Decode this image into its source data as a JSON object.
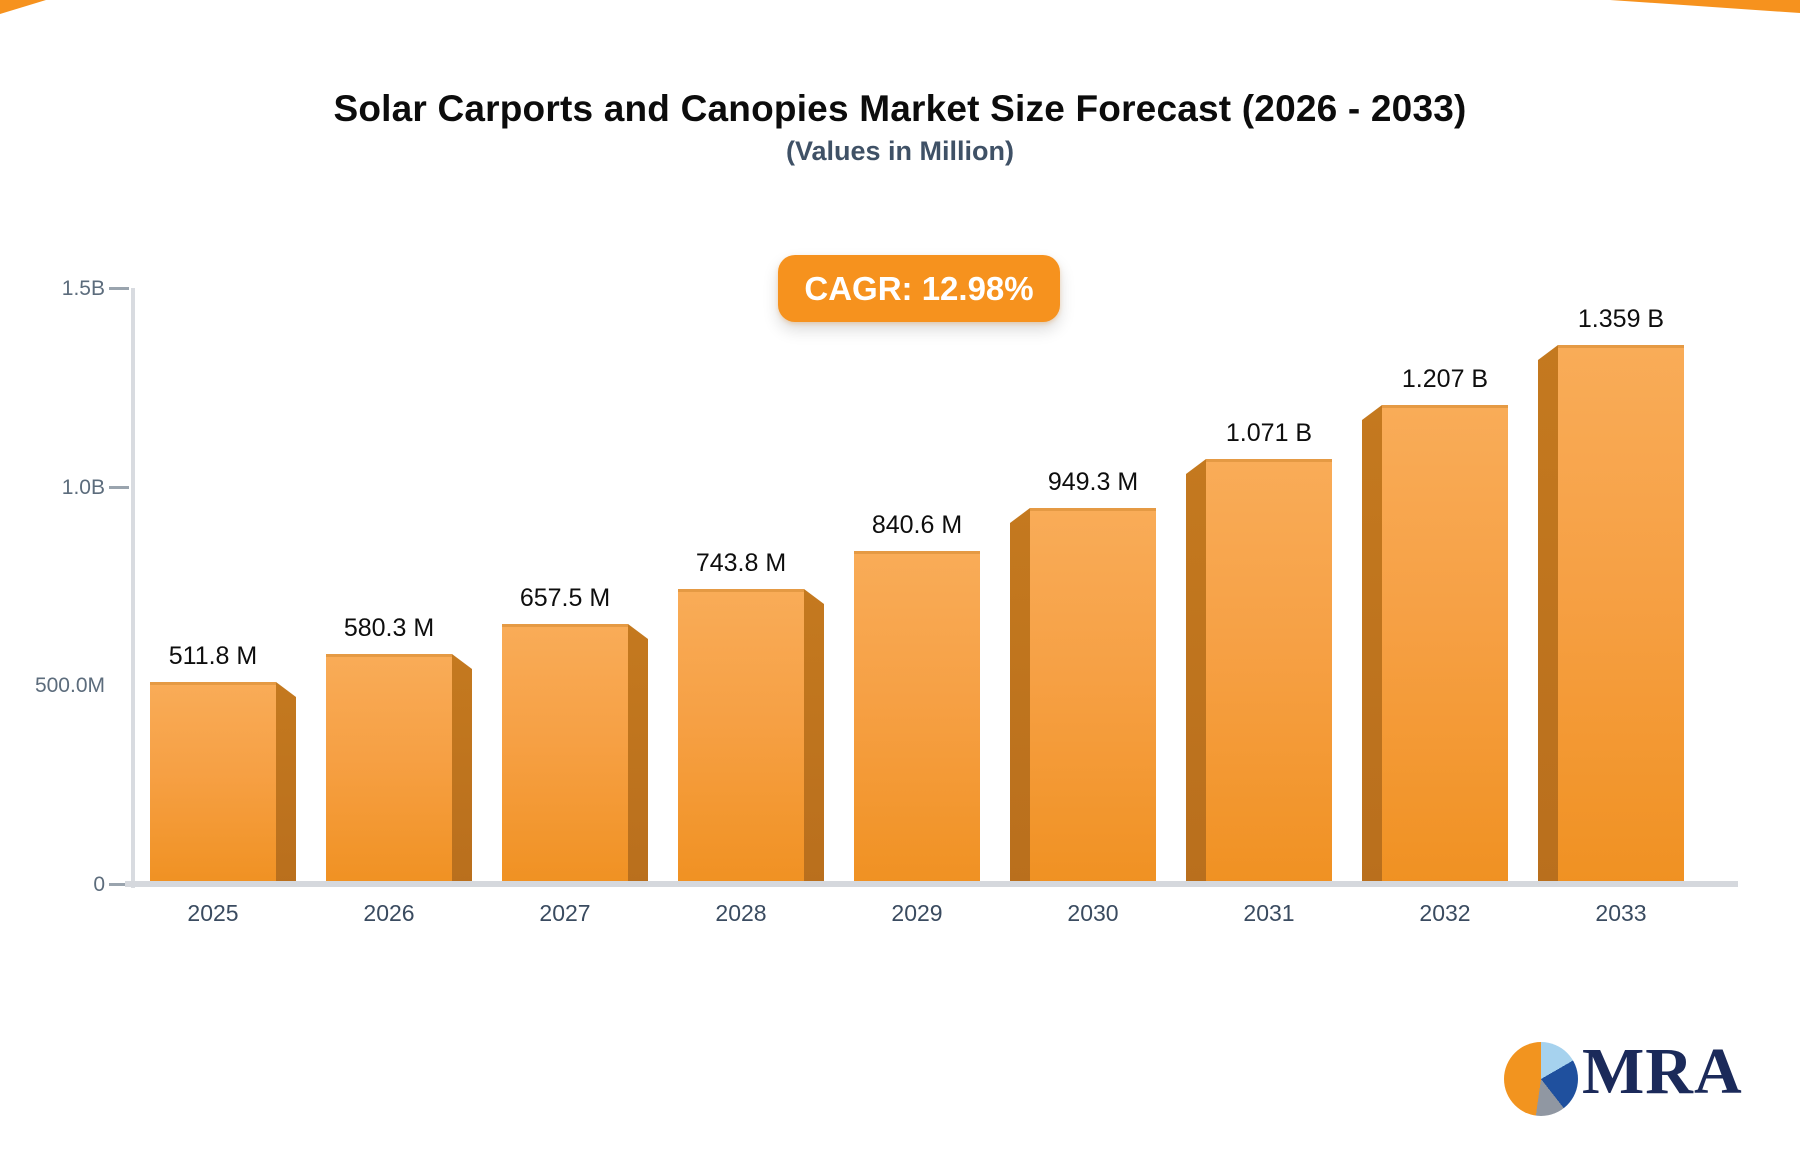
{
  "header": {
    "title": "Solar Carports and Canopies Market Size Forecast (2026 - 2033)",
    "subtitle": "(Values in Million)",
    "cagr_badge": "CAGR: 12.98%"
  },
  "chart_data": {
    "type": "bar",
    "title": "Solar Carports and Canopies Market Size Forecast (2026 - 2033)",
    "subtitle": "(Values in Million)",
    "cagr_percent": 12.98,
    "categories": [
      "2025",
      "2026",
      "2027",
      "2028",
      "2029",
      "2030",
      "2031",
      "2032",
      "2033"
    ],
    "values_million": [
      511.8,
      580.3,
      657.5,
      743.8,
      840.6,
      949.3,
      1071,
      1207,
      1359
    ],
    "value_labels": [
      "511.8 M",
      "580.3 M",
      "657.5 M",
      "743.8 M",
      "840.6 M",
      "949.3 M",
      "1.071 B",
      "1.207 B",
      "1.359 B"
    ],
    "y_ticks": [
      {
        "label": "1.5B",
        "million": 1500,
        "dash": true
      },
      {
        "label": "1.0B",
        "million": 1000,
        "dash": true
      },
      {
        "label": "500.0M",
        "million": 500,
        "dash": false
      },
      {
        "label": "0",
        "million": 0,
        "dash": true
      }
    ],
    "ylim_million": [
      0,
      1500
    ],
    "xlabel": "",
    "ylabel": "",
    "grid": false,
    "legend": false
  },
  "colors": {
    "accent_orange": "#F6921E",
    "bar_face_top": "#F9AC58",
    "bar_face_bottom": "#F09122",
    "bar_side": "#BC721C",
    "axis_line": "#D8DBE0",
    "baseline": "#D5D8DD",
    "tick_text": "#5C6C7C",
    "year_text": "#3A4B60",
    "value_text": "#0E0E0E",
    "subtitle_text": "#3F5166",
    "logo_navy": "#1B2A5A",
    "logo_pie_lightblue": "#A6D2EE",
    "logo_pie_darkblue": "#1F509E",
    "logo_pie_gray": "#9097A2",
    "logo_pie_orange": "#F2941F"
  },
  "logo": {
    "text": "MRA",
    "pie_icon": "pie-chart-icon"
  }
}
